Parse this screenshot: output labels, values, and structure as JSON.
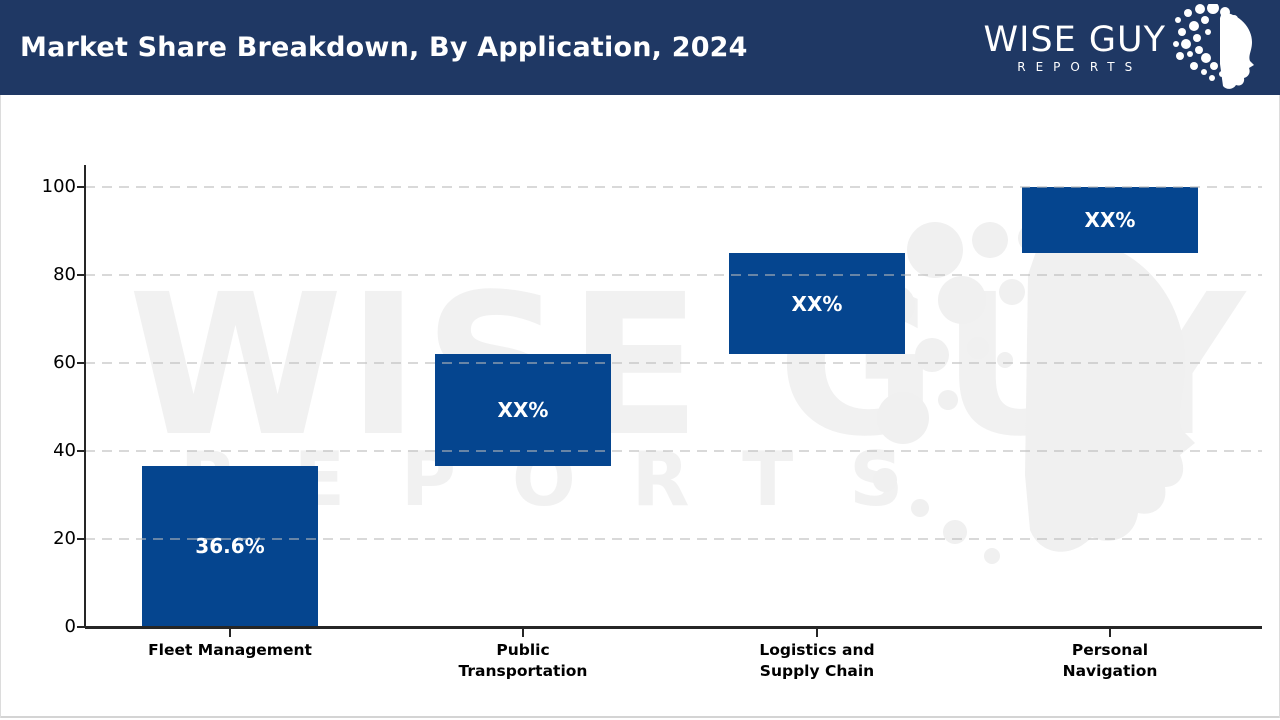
{
  "header": {
    "title": "Market Share Breakdown, By Application, 2024",
    "bg_color": "#1f3864",
    "logo": {
      "name": "WISE GUY",
      "sub": "REPORTS"
    }
  },
  "watermark": {
    "line1": "WISE GUY",
    "line2": "REPORTS"
  },
  "chart_data": {
    "type": "bar",
    "subtype": "floating-waterfall",
    "title": "Market Share Breakdown, By Application, 2024",
    "categories": [
      [
        "Fleet Management"
      ],
      [
        "Public",
        "Transportation"
      ],
      [
        "Logistics and",
        "Supply Chain"
      ],
      [
        "Personal",
        "Navigation"
      ]
    ],
    "segments": [
      {
        "category": "Fleet Management",
        "start": 0,
        "end": 36.6,
        "label": "36.6%"
      },
      {
        "category": "Public Transportation",
        "start": 36.6,
        "end": 62,
        "label": "XX%"
      },
      {
        "category": "Logistics and Supply Chain",
        "start": 62,
        "end": 85,
        "label": "XX%"
      },
      {
        "category": "Personal Navigation",
        "start": 85,
        "end": 100,
        "label": "XX%"
      }
    ],
    "yticks": [
      0,
      20,
      40,
      60,
      80,
      100
    ],
    "ylim": [
      0,
      100
    ],
    "grid": "horizontal-dashed",
    "legend": "none",
    "bar_color": "#05458f",
    "value_label_color": "#ffffff",
    "axis_color": "#262626"
  }
}
